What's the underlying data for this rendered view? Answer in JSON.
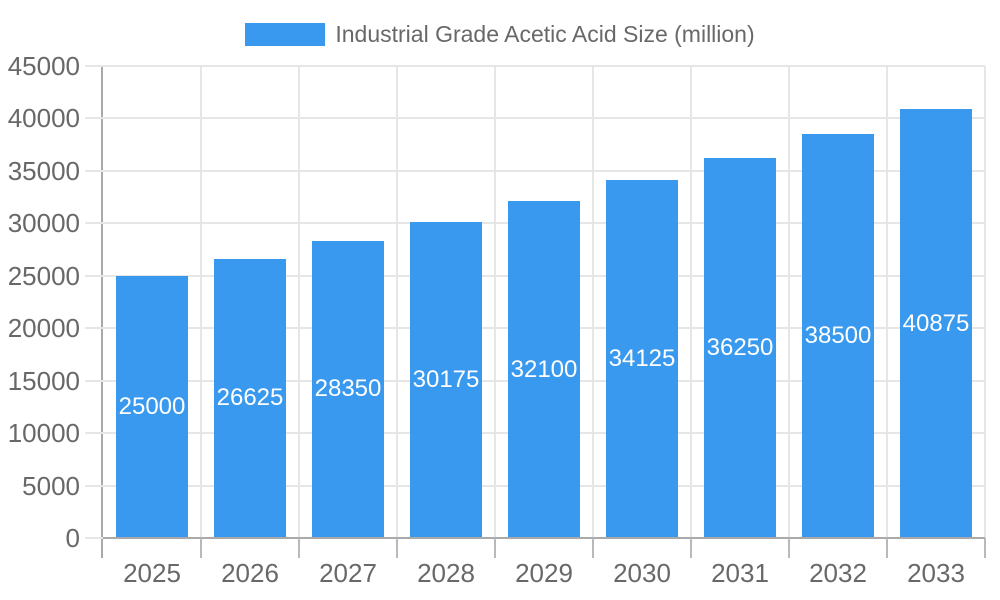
{
  "chart_data": {
    "type": "bar",
    "title": "",
    "legend_position": "top",
    "categories": [
      "2025",
      "2026",
      "2027",
      "2028",
      "2029",
      "2030",
      "2031",
      "2032",
      "2033"
    ],
    "series": [
      {
        "name": "Industrial Grade Acetic Acid Size (million)",
        "values": [
          25000,
          26625,
          28350,
          30175,
          32100,
          34125,
          36250,
          38500,
          40875
        ]
      }
    ],
    "xlabel": "",
    "ylabel": "",
    "ylim": [
      0,
      45000
    ],
    "y_ticks": [
      0,
      5000,
      10000,
      15000,
      20000,
      25000,
      30000,
      35000,
      40000,
      45000
    ],
    "grid": true,
    "colors": {
      "bar": "#3999ee",
      "bar_label_text": "#ffffff",
      "axis_text": "#686868",
      "grid_line": "#e6e6e6",
      "axis_line": "#a9a9a9",
      "tick_mark": "#b9b9b9",
      "background": "#ffffff"
    }
  }
}
